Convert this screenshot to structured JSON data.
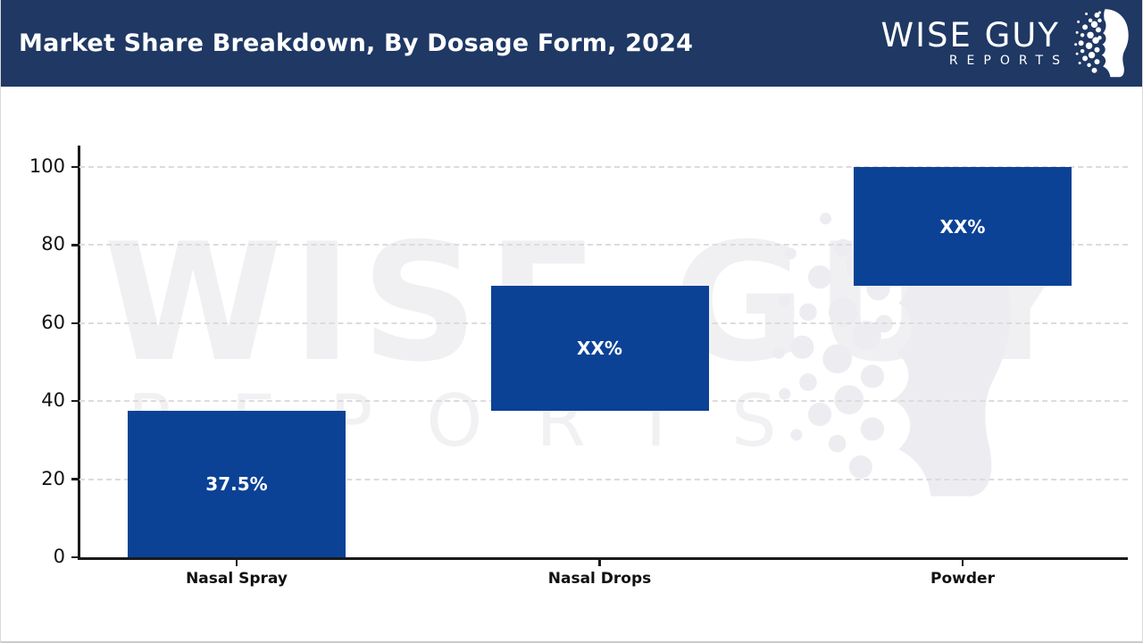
{
  "header": {
    "title": "Market Share Breakdown, By Dosage Form, 2024",
    "logo": {
      "line1": "WISE GUY",
      "line2": "REPORTS"
    }
  },
  "watermark": {
    "line1": "WISE GUY",
    "line2": "REPORTS"
  },
  "chart_data": {
    "type": "bar",
    "subtype": "waterfall",
    "title": "Market Share Breakdown, By Dosage Form, 2024",
    "categories": [
      "Nasal Spray",
      "Nasal Drops",
      "Powder"
    ],
    "bars": [
      {
        "category": "Nasal Spray",
        "start": 0,
        "end": 37.5,
        "label": "37.5%"
      },
      {
        "category": "Nasal Drops",
        "start": 37.5,
        "end": 69.5,
        "label": "XX%"
      },
      {
        "category": "Powder",
        "start": 69.5,
        "end": 100,
        "label": "XX%"
      }
    ],
    "xlabel": "",
    "ylabel": "",
    "ylim": [
      0,
      105
    ],
    "yticks": [
      0,
      20,
      40,
      60,
      80,
      100
    ],
    "grid": "horizontal-dashed",
    "legend": "none",
    "bar_color": "#0b4296",
    "bar_label_color": "#ffffff"
  },
  "colors": {
    "header_bg": "#1f3864",
    "bar": "#0b4296",
    "grid": "#dcdcdc",
    "axis": "#1a1a1a",
    "watermark": "#f0f0f3",
    "bottom_border": "#cbcbcb"
  }
}
